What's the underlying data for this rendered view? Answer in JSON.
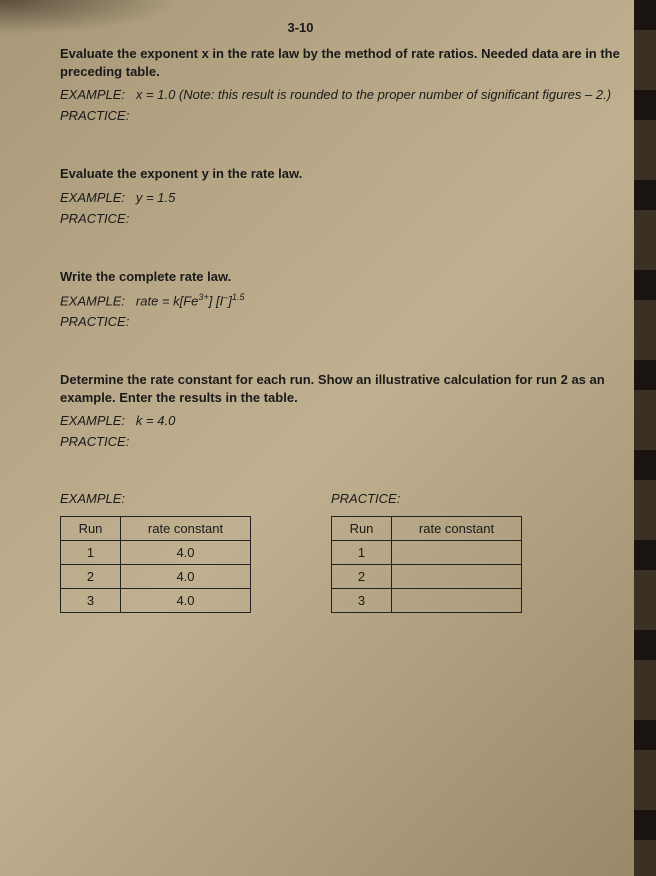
{
  "page_number": "3-10",
  "section1": {
    "prompt": "Evaluate the exponent x in the rate law by the method of rate ratios. Needed data are in the preceding table.",
    "example_label": "EXAMPLE:",
    "example_value": "x = 1.0",
    "example_note": "(Note: this result is rounded to the proper number of significant figures – 2.)",
    "practice_label": "PRACTICE:"
  },
  "section2": {
    "prompt": "Evaluate the exponent y in the rate law.",
    "example_label": "EXAMPLE:",
    "example_value": "y = 1.5",
    "practice_label": "PRACTICE:"
  },
  "section3": {
    "prompt": "Write the complete rate law.",
    "example_label": "EXAMPLE:",
    "example_prefix": "rate = k[Fe",
    "example_sup1": "3+",
    "example_mid": "] [I",
    "example_sup2": "–",
    "example_end": "]",
    "example_sup3": "1.5",
    "practice_label": "PRACTICE:"
  },
  "section4": {
    "prompt": "Determine the rate constant for each run. Show an illustrative calculation for run 2 as an example. Enter the results in the table.",
    "example_label": "EXAMPLE:",
    "example_value": "k = 4.0",
    "practice_label": "PRACTICE:"
  },
  "tables": {
    "example_title": "EXAMPLE:",
    "practice_title": "PRACTICE:",
    "col_run": "Run",
    "col_rc": "rate constant",
    "example_rows": [
      {
        "run": "1",
        "rc": "4.0"
      },
      {
        "run": "2",
        "rc": "4.0"
      },
      {
        "run": "3",
        "rc": "4.0"
      }
    ],
    "practice_rows": [
      {
        "run": "1",
        "rc": ""
      },
      {
        "run": "2",
        "rc": ""
      },
      {
        "run": "3",
        "rc": ""
      }
    ]
  },
  "styling": {
    "page_bg_gradient": [
      "#a89878",
      "#b8a888",
      "#c0b090",
      "#b0a080",
      "#988868"
    ],
    "text_color": "#1a1a1a",
    "table_border_color": "#222222",
    "font_family": "Arial",
    "prompt_fontsize_pt": 10,
    "prompt_fontweight": "bold",
    "example_fontstyle": "italic",
    "binding_colors": [
      "#1a1410",
      "#3a3024"
    ]
  }
}
